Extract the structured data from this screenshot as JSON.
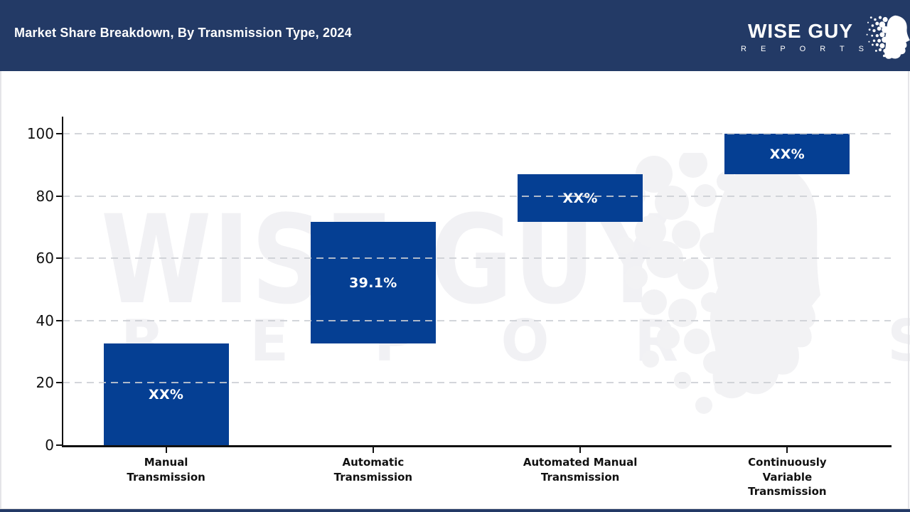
{
  "header": {
    "title": "Market Share Breakdown, By Transmission Type, 2024",
    "logo": {
      "primary": "WISE GUY",
      "secondary": "R E P O R T S"
    }
  },
  "watermark": {
    "primary": "WISE GUY",
    "secondary": "R E P O R T S"
  },
  "colors": {
    "header_bg": "#233a66",
    "footer_bar": "#233a66",
    "bar_fill": "#053f93",
    "bar_label_text": "#ffffff",
    "axis": "#111111",
    "gridline": "#d9d9d9",
    "watermark": "#f1f1f4",
    "title_text": "#ffffff",
    "tick_text": "#111111"
  },
  "chart_data": {
    "type": "waterfall",
    "title": "Market Share Breakdown, By Transmission Type, 2024",
    "categories": [
      "Manual\nTransmission",
      "Automatic\nTransmission",
      "Automated Manual\nTransmission",
      "Continuously\nVariable\nTransmission"
    ],
    "segments": [
      {
        "category": "Manual Transmission",
        "label": "XX%",
        "start": 0,
        "end": 32.6,
        "value_label_shown": false,
        "value_estimate": 32.6
      },
      {
        "category": "Automatic Transmission",
        "label": "39.1%",
        "start": 32.6,
        "end": 71.7,
        "value_label_shown": true,
        "value": 39.1
      },
      {
        "category": "Automated Manual Transmission",
        "label": "XX%",
        "start": 71.7,
        "end": 86.9,
        "value_label_shown": false,
        "value_estimate": 15.2
      },
      {
        "category": "Continuously Variable Transmission",
        "label": "XX%",
        "start": 86.9,
        "end": 100,
        "value_label_shown": false,
        "value_estimate": 13.1
      }
    ],
    "yticks": [
      0,
      20,
      40,
      60,
      80,
      100
    ],
    "ylim": [
      0,
      105.4
    ],
    "xlabel": "",
    "ylabel": "",
    "grid": "horizontal dashed gridlines drawn over bars",
    "legend": "none"
  }
}
